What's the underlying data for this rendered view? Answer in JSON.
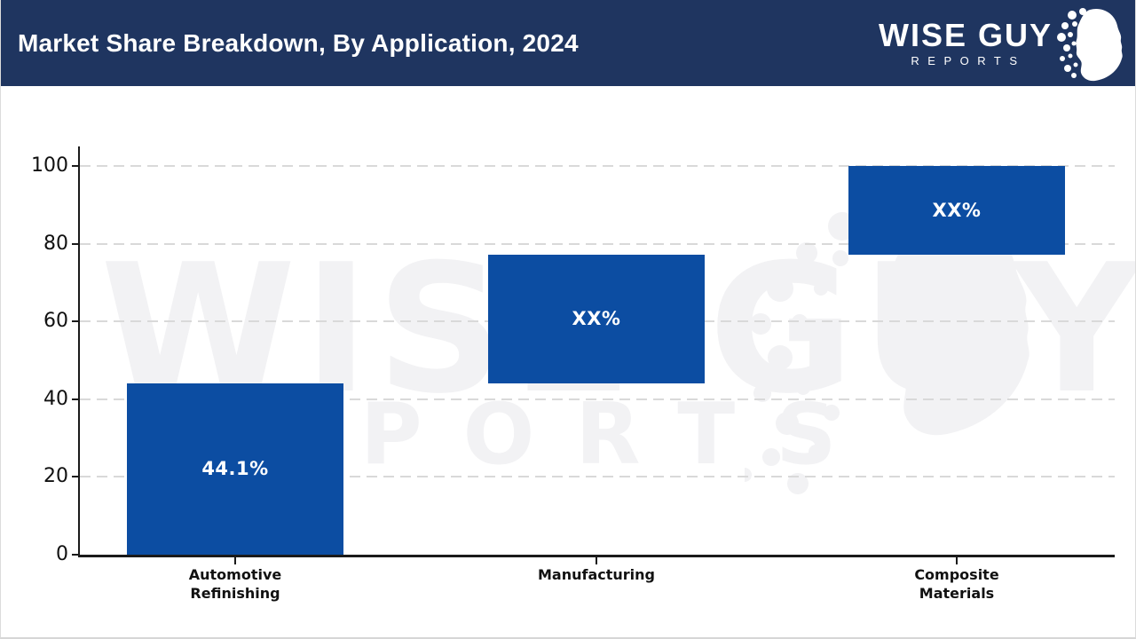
{
  "header": {
    "title": "Market Share Breakdown, By Application, 2024",
    "logo": {
      "wordmark": "WISE GUY",
      "subtext": "REPORTS"
    }
  },
  "watermark": {
    "line1": "WISE GUY",
    "line2": "REPORTS"
  },
  "colors": {
    "header_bg": "#1f3560",
    "bar": "#0c4da2",
    "watermark": "#f2f2f4",
    "gridline": "#d9d9d9",
    "axis": "#1a1a1a",
    "bar_label_text": "#ffffff"
  },
  "chart_data": {
    "type": "bar",
    "subtype": "floating-stacked-breakdown",
    "title": "Market Share Breakdown, By Application, 2024",
    "categories": [
      "Automotive Refinishing",
      "Manufacturing",
      "Composite Materials"
    ],
    "category_lines": [
      [
        "Automotive",
        "Refinishing"
      ],
      [
        "Manufacturing"
      ],
      [
        "Composite",
        "Materials"
      ]
    ],
    "segments": [
      {
        "category": "Automotive Refinishing",
        "start": 0,
        "end": 44.1,
        "label": "44.1%"
      },
      {
        "category": "Manufacturing",
        "start": 44.1,
        "end": 77.2,
        "label": "XX%"
      },
      {
        "category": "Composite Materials",
        "start": 77.2,
        "end": 100,
        "label": "XX%"
      }
    ],
    "xlabel": "",
    "ylabel": "",
    "ylim": [
      0,
      100
    ],
    "yticks": [
      0,
      20,
      40,
      60,
      80,
      100
    ],
    "grid": "horizontal-dashed",
    "legend": "none"
  }
}
